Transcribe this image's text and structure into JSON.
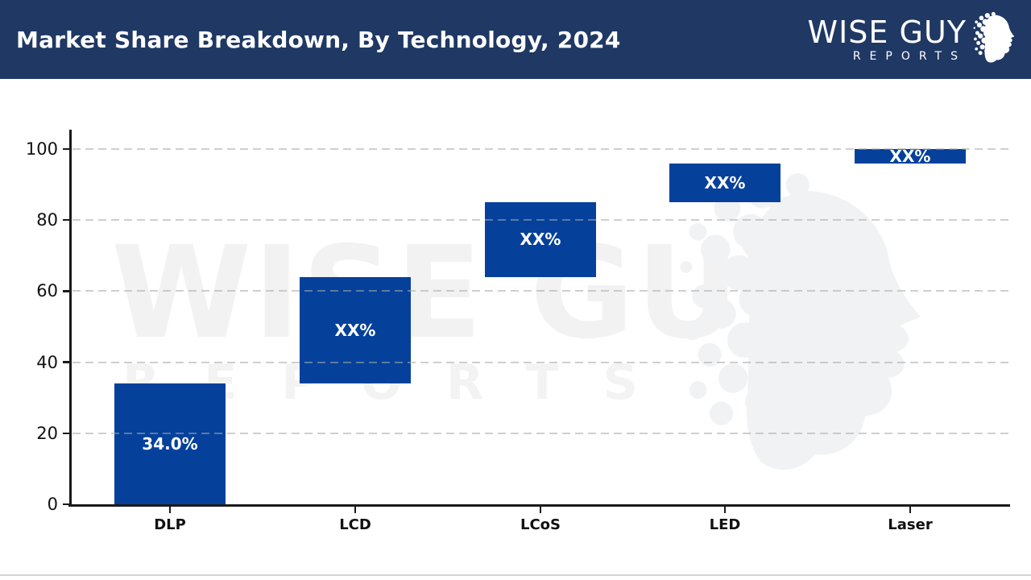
{
  "header": {
    "title": "Market Share Breakdown, By Technology, 2024",
    "logo": {
      "name": "WISE GUY",
      "tagline": "REPORTS"
    }
  },
  "watermark": {
    "name": "WISE GUY",
    "tagline": "REPORTS"
  },
  "colors": {
    "header_bg": "#1f3864",
    "bar": "#05419b",
    "bar_label": "#ffffff",
    "axis": "#1a1a1a",
    "grid": "#d9d9d9",
    "watermark": "#f2f2f3"
  },
  "chart_data": {
    "type": "bar",
    "variant": "waterfall",
    "title": "Market Share Breakdown, By Technology, 2024",
    "categories": [
      "DLP",
      "LCD",
      "LCoS",
      "LED",
      "Laser"
    ],
    "segments": [
      {
        "category": "DLP",
        "start": 0,
        "end": 34,
        "label": "34.0%"
      },
      {
        "category": "LCD",
        "start": 34,
        "end": 64,
        "label": "XX%"
      },
      {
        "category": "LCoS",
        "start": 64,
        "end": 85,
        "label": "XX%"
      },
      {
        "category": "LED",
        "start": 85,
        "end": 96,
        "label": "XX%"
      },
      {
        "category": "Laser",
        "start": 96,
        "end": 100,
        "label": "XX%"
      }
    ],
    "xlabel": "",
    "ylabel": "",
    "ylim": [
      0,
      100
    ],
    "yticks": [
      0,
      20,
      40,
      60,
      80,
      100
    ],
    "grid": "horizontal-dashed",
    "legend": "none"
  }
}
